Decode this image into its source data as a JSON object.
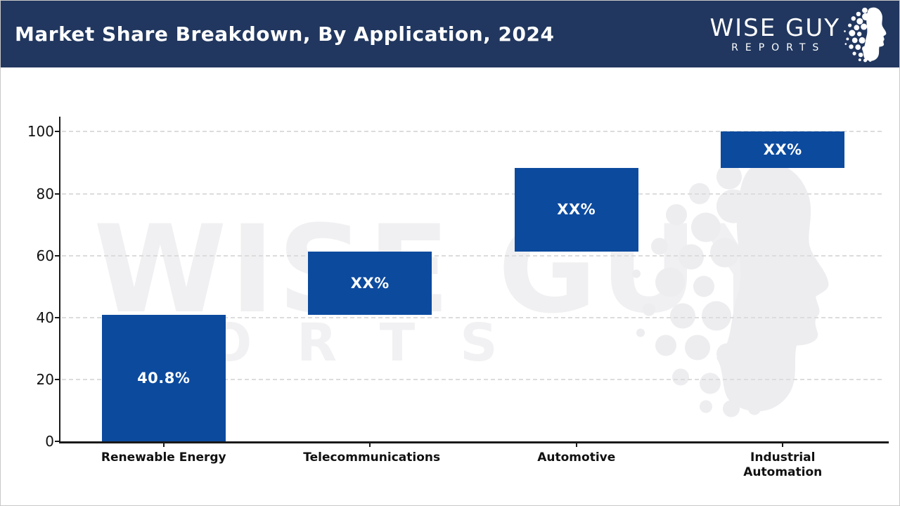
{
  "header": {
    "title": "Market Share Breakdown, By Application, 2024",
    "logo": {
      "line1": "WISE GUY",
      "line2": "REPORTS"
    },
    "bg_color": "#21375f"
  },
  "watermark": {
    "line1": "WISE GUY",
    "line2": "PORTS"
  },
  "chart_data": {
    "type": "bar",
    "subtype": "waterfall",
    "title": "Market Share Breakdown, By Application, 2024",
    "categories": [
      "Renewable Energy",
      "Telecommunications",
      "Automotive",
      "Industrial Automation"
    ],
    "segments": [
      {
        "category": "Renewable Energy",
        "start": 0,
        "end": 40.8,
        "label": "40.8%"
      },
      {
        "category": "Telecommunications",
        "start": 40.8,
        "end": 61.3,
        "label": "XX%"
      },
      {
        "category": "Automotive",
        "start": 61.3,
        "end": 88.3,
        "label": "XX%"
      },
      {
        "category": "Industrial Automation",
        "start": 88.3,
        "end": 100,
        "label": "XX%"
      }
    ],
    "xlabel": "",
    "ylabel": "",
    "yticks": [
      0,
      20,
      40,
      60,
      80,
      100
    ],
    "ylim": [
      0,
      105
    ],
    "grid": "horizontal-dashed",
    "legend": "none",
    "bar_color": "#0c4a9e",
    "bar_label_color": "#ffffff"
  }
}
